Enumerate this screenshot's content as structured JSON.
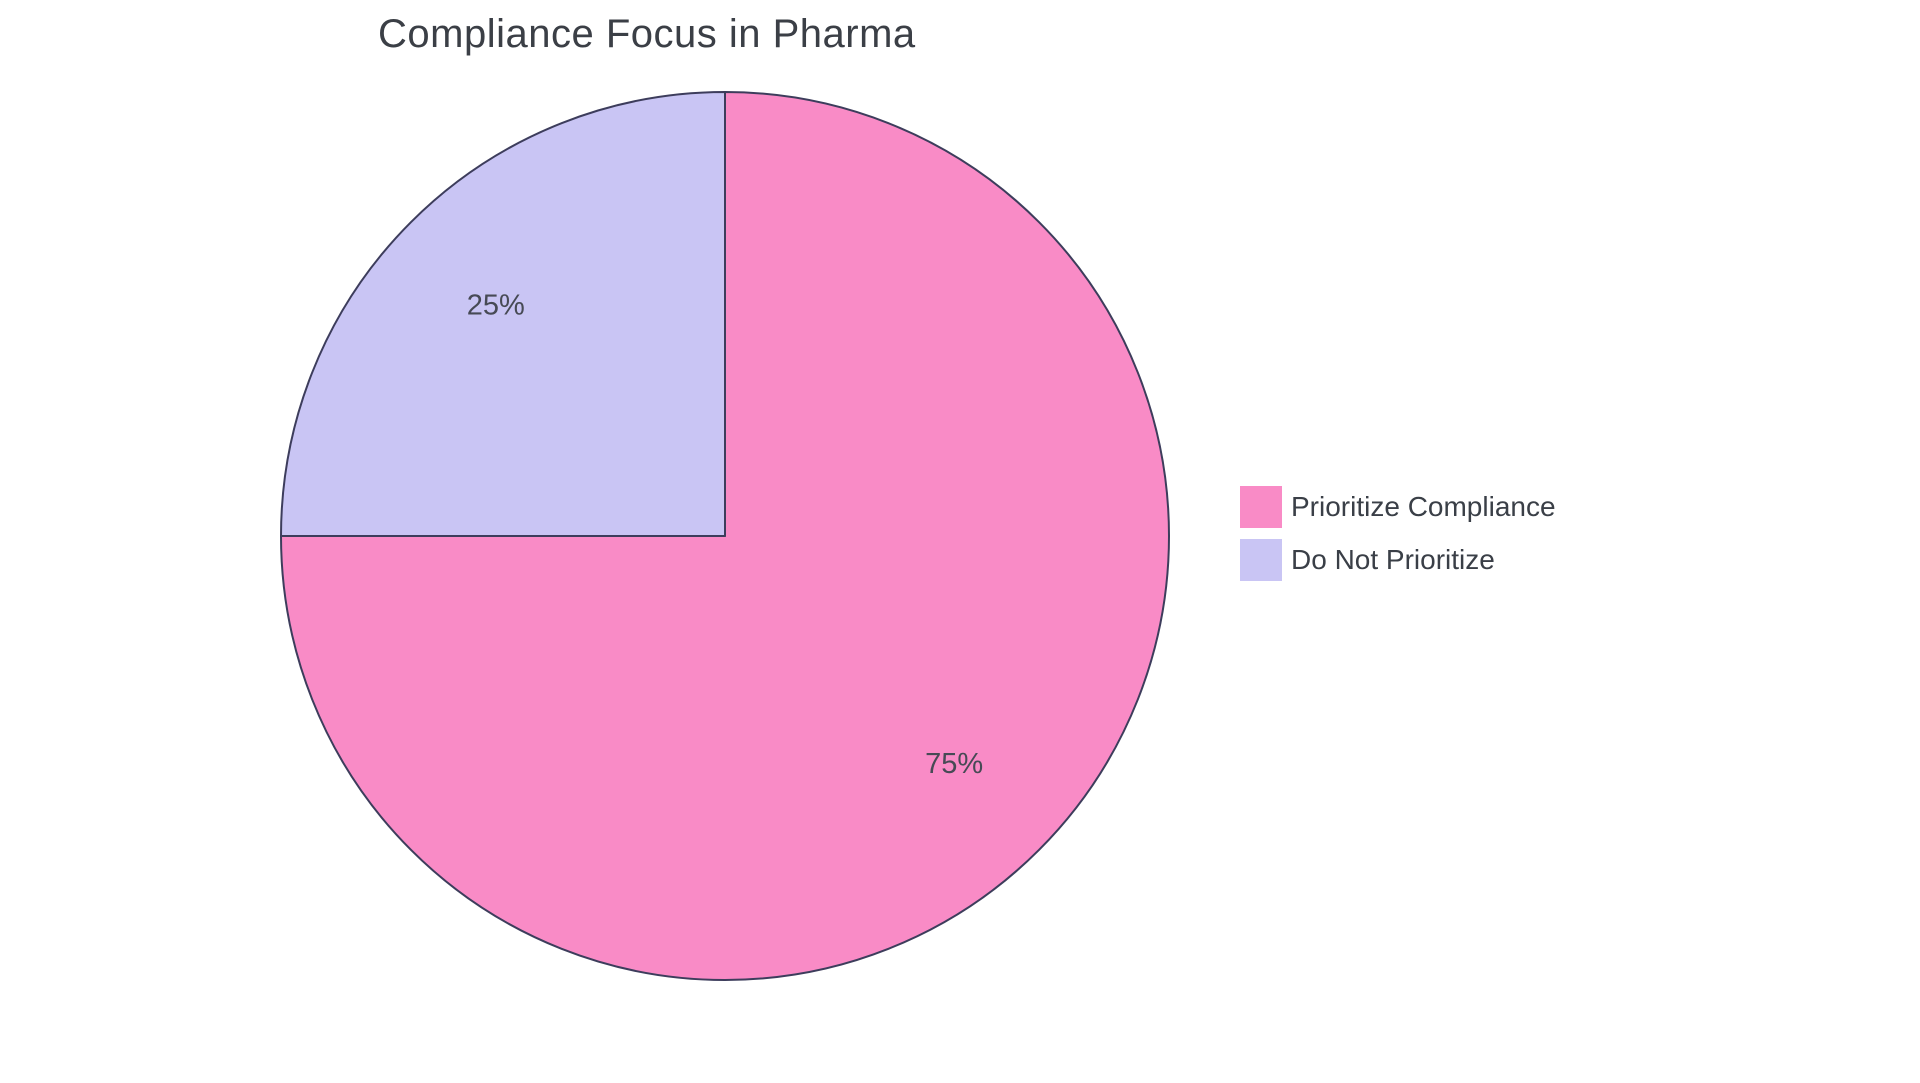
{
  "chart_data": {
    "type": "pie",
    "title": "Compliance Focus in Pharma",
    "labels": [
      "Prioritize Compliance",
      "Do Not Prioritize"
    ],
    "values": [
      75,
      25
    ],
    "percent_labels": [
      "75%",
      "25%"
    ],
    "colors": [
      "#F98BC6",
      "#C9C5F4"
    ],
    "stroke_color": "#3d3d5c",
    "text_color": "#3a3f47",
    "legend_position": "right",
    "start_angle_deg": 0,
    "direction": "clockwise"
  }
}
